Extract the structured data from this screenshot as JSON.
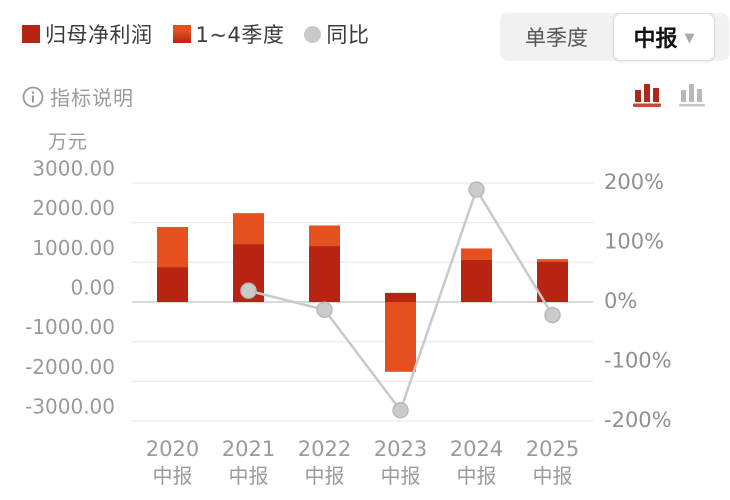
{
  "controls": {
    "single_quarter_label": "单季度",
    "selected_period_label": "中报",
    "dropdown_glyph": "▼"
  },
  "indicator": {
    "label": "指标说明"
  },
  "chart_data": {
    "type": "bar+line",
    "title": "",
    "unit": "万元",
    "categories": [
      {
        "year": "2020",
        "period": "中报"
      },
      {
        "year": "2021",
        "period": "中报"
      },
      {
        "year": "2022",
        "period": "中报"
      },
      {
        "year": "2023",
        "period": "中报"
      },
      {
        "year": "2024",
        "period": "中报"
      },
      {
        "year": "2025",
        "period": "中报"
      }
    ],
    "bar_series": [
      {
        "name": "归母净利润",
        "color": "#b82412",
        "axis": "left",
        "segments_wan": [
          [
            0,
            880
          ],
          [
            0,
            1460
          ],
          [
            0,
            1410
          ],
          [
            0,
            230
          ],
          [
            0,
            1060
          ],
          [
            0,
            1010
          ]
        ]
      },
      {
        "name": "1~4季度",
        "color": "#e6501f",
        "axis": "left",
        "segments_wan": [
          [
            880,
            1890
          ],
          [
            1460,
            2240
          ],
          [
            1410,
            1930
          ],
          [
            0,
            -1760
          ],
          [
            1060,
            1350
          ],
          [
            1010,
            1080
          ]
        ]
      }
    ],
    "line_series": {
      "name": "同比",
      "color": "#c9c9c9",
      "marker_fill": "#cbcbcb",
      "marker_stroke": "#b9b9b9",
      "axis": "right",
      "values_pct": [
        null,
        19,
        -13,
        -182,
        189,
        -22
      ]
    },
    "left_axis": {
      "title": "万元",
      "tick_labels": [
        "3000.00",
        "2000.00",
        "1000.00",
        "0.00",
        "-1000.00",
        "-2000.00",
        "-3000.00"
      ],
      "tick_values": [
        3000,
        2000,
        1000,
        0,
        -1000,
        -2000,
        -3000
      ],
      "min": -3000,
      "max": 3000
    },
    "right_axis": {
      "tick_labels": [
        "200%",
        "100%",
        "0%",
        "-100%",
        "-200%"
      ],
      "tick_values": [
        200,
        100,
        0,
        -100,
        -200
      ],
      "min": -200,
      "max": 200
    },
    "grid": true,
    "legend_position": "top-left",
    "colors": {
      "grid_line": "#ededed",
      "zero_line": "#d9d9d9",
      "axis_text": "#9a9a9a",
      "active_icon": "#b0281a",
      "inactive_icon": "#b9b9b9"
    }
  }
}
